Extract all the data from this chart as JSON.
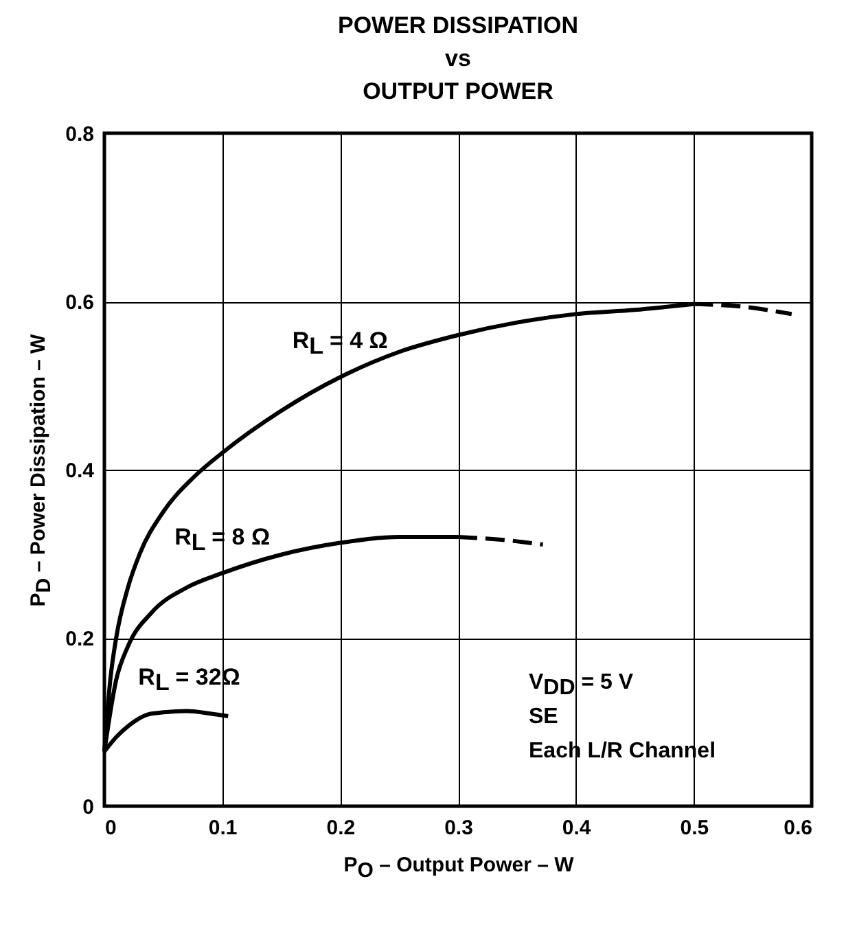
{
  "chart_data": {
    "type": "line",
    "title": "POWER DISSIPATION\nvs\nOUTPUT POWER",
    "xlabel": "P$_{O}$ – Output Power – W",
    "ylabel": "P$_{D}$ – Power Dissipation – W",
    "xlim": [
      0,
      0.6
    ],
    "xticks": [
      0,
      0.1,
      0.2,
      0.3,
      0.4,
      0.5,
      0.6
    ],
    "ylim": [
      0,
      0.8
    ],
    "yticks": [
      0,
      0.2,
      0.4,
      0.6,
      0.8
    ],
    "grid": true,
    "annotations": [
      "V$_{DD}$ = 5 V",
      "SE",
      "Each L/R Channel"
    ],
    "series": [
      {
        "name": "R$_{L}$ = 4 Ω",
        "color": "#000000",
        "x": [
          0,
          0.005,
          0.01,
          0.02,
          0.03,
          0.05,
          0.075,
          0.1,
          0.15,
          0.2,
          0.25,
          0.3,
          0.35,
          0.4,
          0.45,
          0.5
        ],
        "values": [
          0.065,
          0.15,
          0.2,
          0.26,
          0.3,
          0.35,
          0.39,
          0.42,
          0.47,
          0.51,
          0.54,
          0.56,
          0.575,
          0.585,
          0.59,
          0.597
        ]
      },
      {
        "color": "#000000",
        "line_style": "dashed",
        "x": [
          0.5,
          0.54,
          0.583
        ],
        "values": [
          0.597,
          0.594,
          0.585
        ]
      },
      {
        "name": "R$_{L}$ = 8 Ω",
        "color": "#000000",
        "x": [
          0,
          0.01,
          0.02,
          0.04,
          0.07,
          0.1,
          0.15,
          0.2,
          0.25,
          0.3
        ],
        "values": [
          0.065,
          0.15,
          0.19,
          0.23,
          0.26,
          0.277,
          0.299,
          0.313,
          0.32,
          0.32
        ]
      },
      {
        "color": "#000000",
        "line_style": "dashed",
        "x": [
          0.3,
          0.335,
          0.372
        ],
        "values": [
          0.32,
          0.317,
          0.311
        ]
      },
      {
        "name": "R$_{L}$ = 32Ω",
        "color": "#000000",
        "x": [
          0,
          0.01,
          0.02,
          0.04,
          0.07,
          0.09,
          0.105
        ],
        "values": [
          0.065,
          0.082,
          0.095,
          0.11,
          0.113,
          0.11,
          0.107
        ]
      }
    ]
  }
}
